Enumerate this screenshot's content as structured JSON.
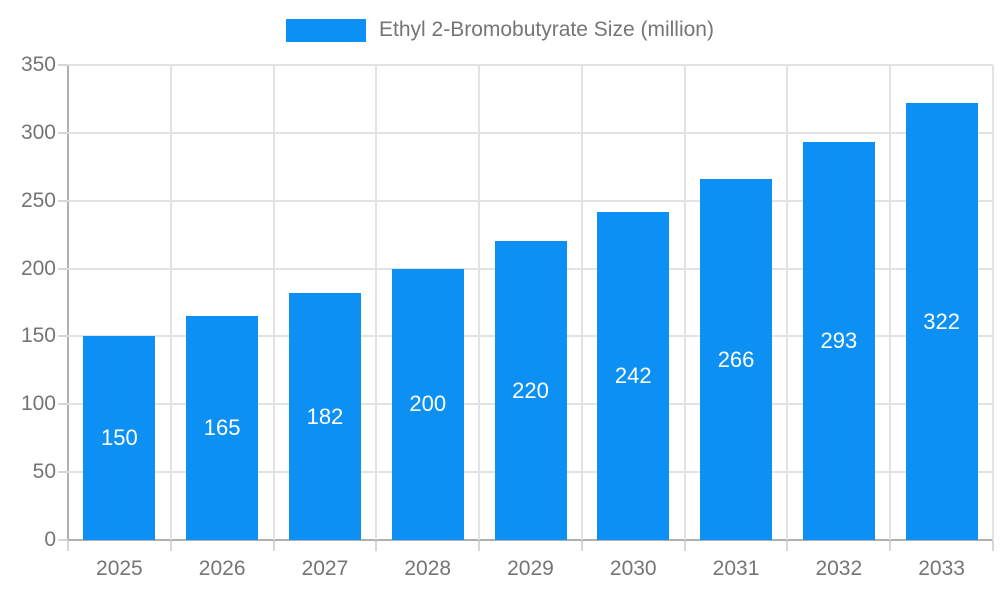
{
  "chart_data": {
    "type": "bar",
    "legend": "Ethyl 2-Bromobutyrate Size (million)",
    "categories": [
      "2025",
      "2026",
      "2027",
      "2028",
      "2029",
      "2030",
      "2031",
      "2032",
      "2033"
    ],
    "values": [
      150,
      165,
      182,
      200,
      220,
      242,
      266,
      293,
      322
    ],
    "yticks": [
      0,
      50,
      100,
      150,
      200,
      250,
      300,
      350
    ],
    "ylim": [
      0,
      350
    ],
    "grid": "horizontal and vertical category boundaries",
    "legend_position": "top-center",
    "colors": {
      "bar": "#0d90f3",
      "grid": "#e3e3e3",
      "axis_line": "#b0b0b0",
      "tick": "#d6d6d6",
      "axis_text": "#757575",
      "value_text": "#ffffff",
      "background": "#ffffff"
    }
  }
}
